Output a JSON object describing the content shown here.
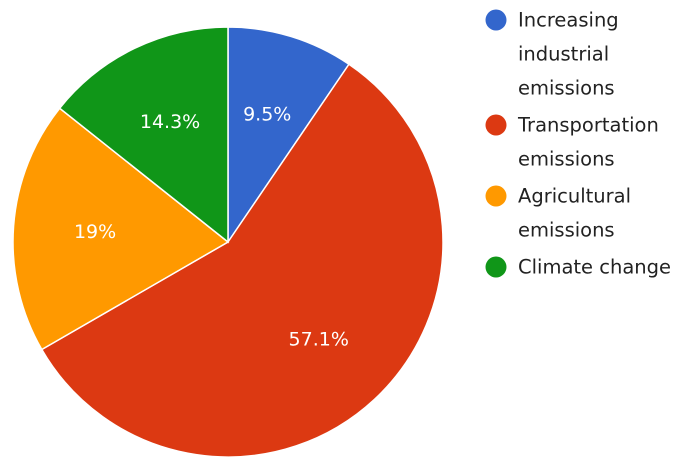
{
  "chart_data": {
    "type": "pie",
    "title": "",
    "slices": [
      {
        "label": "Increasing industrial emissions",
        "value": 9.5,
        "display": "9.5%",
        "color": "#3366cc"
      },
      {
        "label": "Transportation emissions",
        "value": 57.1,
        "display": "57.1%",
        "color": "#dc3912"
      },
      {
        "label": "Agricultural emissions",
        "value": 19,
        "display": "19%",
        "color": "#ff9900"
      },
      {
        "label": "Climate change",
        "value": 14.3,
        "display": "14.3%",
        "color": "#109618"
      }
    ],
    "legend": {
      "position": "right",
      "entries": [
        {
          "lines": [
            "Increasing",
            "industrial",
            "emissions"
          ]
        },
        {
          "lines": [
            "Transportation",
            "emissions"
          ]
        },
        {
          "lines": [
            "Agricultural",
            "emissions"
          ]
        },
        {
          "lines": [
            "Climate change"
          ]
        }
      ]
    }
  }
}
